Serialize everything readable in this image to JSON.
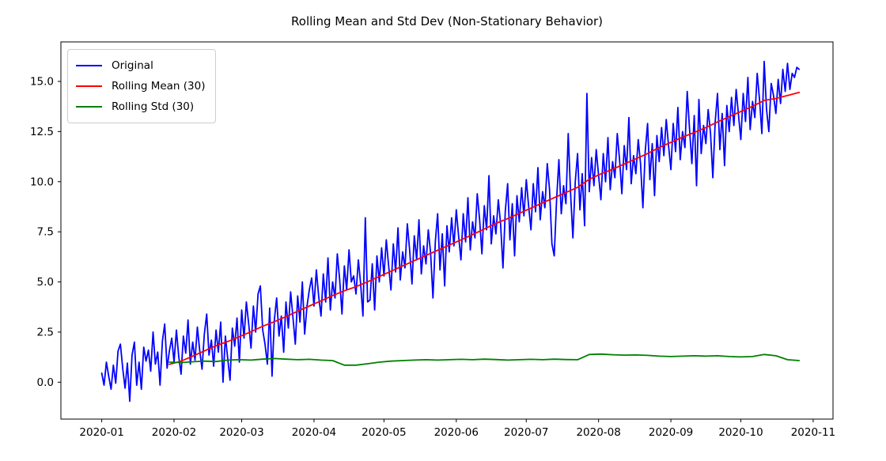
{
  "chart_data": {
    "type": "line",
    "title": "Rolling Mean and Std Dev (Non-Stationary Behavior)",
    "grid": false,
    "background": "#ffffff",
    "x_axis": {
      "label": "",
      "unit": "date",
      "start_date": "2020-01-01",
      "frequency": "daily",
      "tick_labels": [
        "2020-01",
        "2020-02",
        "2020-03",
        "2020-04",
        "2020-05",
        "2020-06",
        "2020-07",
        "2020-08",
        "2020-09",
        "2020-10",
        "2020-11"
      ],
      "tick_days": [
        0,
        31,
        60,
        91,
        121,
        152,
        182,
        213,
        244,
        274,
        305
      ],
      "xlim_days": [
        -17.5,
        313.5
      ]
    },
    "y_axis": {
      "label": "",
      "tick_labels": [
        "0.0",
        "2.5",
        "5.0",
        "7.5",
        "10.0",
        "12.5",
        "15.0"
      ],
      "tick_values": [
        0,
        2.5,
        5,
        7.5,
        10,
        12.5,
        15
      ],
      "ylim": [
        -1.84,
        16.97
      ]
    },
    "legend": {
      "position": "upper left",
      "entries": [
        "Original",
        "Rolling Mean (30)",
        "Rolling Std (30)"
      ]
    },
    "series": [
      {
        "name": "Original",
        "color": "#0000ff",
        "day_start": 0,
        "day_step": 1,
        "values": [
          0.45,
          -0.15,
          1.0,
          0.3,
          -0.35,
          0.85,
          -0.05,
          1.55,
          1.9,
          0.7,
          -0.3,
          0.95,
          -0.95,
          1.35,
          2.0,
          -0.15,
          1.0,
          -0.35,
          1.75,
          1.05,
          1.6,
          0.55,
          2.5,
          0.9,
          1.5,
          -0.15,
          2.05,
          2.9,
          0.7,
          1.55,
          2.2,
          1.0,
          2.6,
          1.3,
          0.4,
          2.3,
          1.45,
          3.1,
          0.9,
          2.0,
          1.1,
          2.75,
          1.6,
          0.65,
          2.4,
          3.4,
          1.35,
          2.1,
          0.8,
          2.6,
          1.5,
          3.0,
          0.0,
          2.3,
          1.2,
          0.1,
          2.7,
          1.8,
          3.2,
          1.0,
          3.6,
          2.2,
          4.0,
          2.9,
          1.7,
          3.8,
          2.5,
          4.4,
          4.8,
          2.6,
          1.9,
          0.9,
          3.7,
          0.3,
          3.1,
          4.2,
          2.3,
          3.3,
          1.5,
          4.0,
          2.7,
          4.5,
          3.2,
          1.9,
          4.3,
          3.0,
          5.0,
          2.4,
          3.8,
          4.6,
          5.2,
          3.8,
          5.6,
          4.3,
          3.3,
          5.4,
          4.0,
          6.2,
          3.6,
          5.0,
          4.2,
          6.4,
          5.1,
          3.4,
          5.8,
          4.6,
          6.6,
          5.0,
          5.3,
          4.4,
          6.1,
          4.9,
          3.3,
          8.2,
          4.0,
          4.1,
          5.9,
          3.6,
          6.3,
          5.0,
          6.7,
          5.3,
          7.1,
          5.8,
          4.6,
          6.9,
          5.5,
          7.7,
          5.1,
          6.5,
          5.7,
          7.9,
          6.6,
          4.9,
          7.3,
          6.1,
          8.1,
          5.4,
          6.8,
          5.9,
          7.6,
          6.4,
          4.2,
          7.0,
          8.4,
          5.6,
          7.4,
          4.8,
          7.8,
          6.5,
          8.2,
          6.8,
          8.6,
          7.3,
          6.1,
          8.4,
          7.0,
          9.2,
          6.6,
          8.0,
          7.2,
          9.4,
          8.1,
          6.4,
          8.8,
          7.6,
          10.3,
          6.9,
          8.3,
          7.4,
          9.1,
          7.9,
          5.7,
          8.5,
          9.9,
          7.1,
          8.9,
          6.3,
          9.3,
          8.0,
          9.7,
          8.3,
          10.1,
          8.8,
          7.6,
          9.9,
          8.5,
          10.7,
          8.1,
          9.5,
          8.7,
          10.9,
          9.6,
          6.9,
          6.3,
          9.1,
          11.1,
          8.4,
          9.8,
          8.9,
          12.4,
          9.4,
          7.2,
          10.0,
          11.4,
          8.6,
          10.4,
          7.8,
          14.4,
          9.5,
          11.2,
          9.8,
          11.6,
          10.3,
          9.1,
          11.4,
          10.0,
          12.2,
          9.6,
          11.0,
          10.2,
          12.4,
          11.1,
          9.4,
          11.8,
          10.6,
          13.2,
          9.9,
          11.3,
          10.4,
          12.1,
          10.9,
          8.7,
          11.5,
          12.9,
          10.1,
          11.9,
          9.3,
          12.3,
          11.0,
          12.7,
          11.3,
          13.1,
          11.8,
          10.6,
          12.9,
          11.5,
          13.7,
          11.1,
          12.5,
          11.7,
          14.5,
          12.6,
          10.9,
          13.3,
          9.8,
          14.1,
          11.4,
          12.8,
          11.9,
          13.6,
          12.4,
          10.2,
          13.0,
          14.4,
          11.6,
          13.4,
          10.8,
          13.8,
          12.5,
          14.2,
          12.8,
          14.6,
          13.3,
          12.1,
          14.4,
          13.0,
          15.2,
          12.6,
          14.0,
          13.2,
          15.4,
          14.1,
          12.4,
          16.0,
          13.6,
          12.5,
          14.9,
          14.3,
          13.4,
          15.1,
          13.9,
          15.6,
          14.5,
          15.9,
          14.6,
          15.4,
          15.2,
          15.7,
          15.6
        ]
      },
      {
        "name": "Rolling Mean (30)",
        "color": "#ff0000",
        "day_start": 29,
        "day_step": 5,
        "values": [
          0.89,
          1.05,
          1.3,
          1.56,
          1.82,
          2.03,
          2.27,
          2.52,
          2.79,
          3.02,
          3.27,
          3.54,
          3.8,
          4.06,
          4.32,
          4.56,
          4.76,
          5.01,
          5.27,
          5.53,
          5.8,
          6.06,
          6.32,
          6.58,
          6.84,
          7.1,
          7.36,
          7.64,
          7.92,
          8.16,
          8.42,
          8.68,
          8.94,
          9.2,
          9.46,
          9.72,
          10.12,
          10.39,
          10.62,
          10.88,
          11.14,
          11.4,
          11.7,
          11.96,
          12.22,
          12.45,
          12.7,
          12.98,
          13.24,
          13.5,
          13.76,
          14.05,
          14.15,
          14.3,
          14.45
        ]
      },
      {
        "name": "Rolling Std (30)",
        "color": "#008000",
        "day_start": 29,
        "day_step": 5,
        "values": [
          1.0,
          0.98,
          1.02,
          1.05,
          1.03,
          1.1,
          1.12,
          1.1,
          1.15,
          1.18,
          1.15,
          1.12,
          1.14,
          1.1,
          1.08,
          0.85,
          0.85,
          0.92,
          1.0,
          1.05,
          1.08,
          1.1,
          1.12,
          1.1,
          1.12,
          1.14,
          1.12,
          1.15,
          1.13,
          1.1,
          1.12,
          1.14,
          1.12,
          1.15,
          1.13,
          1.12,
          1.38,
          1.4,
          1.37,
          1.35,
          1.36,
          1.34,
          1.3,
          1.28,
          1.3,
          1.32,
          1.3,
          1.32,
          1.28,
          1.26,
          1.28,
          1.38,
          1.32,
          1.12,
          1.08
        ]
      }
    ]
  }
}
